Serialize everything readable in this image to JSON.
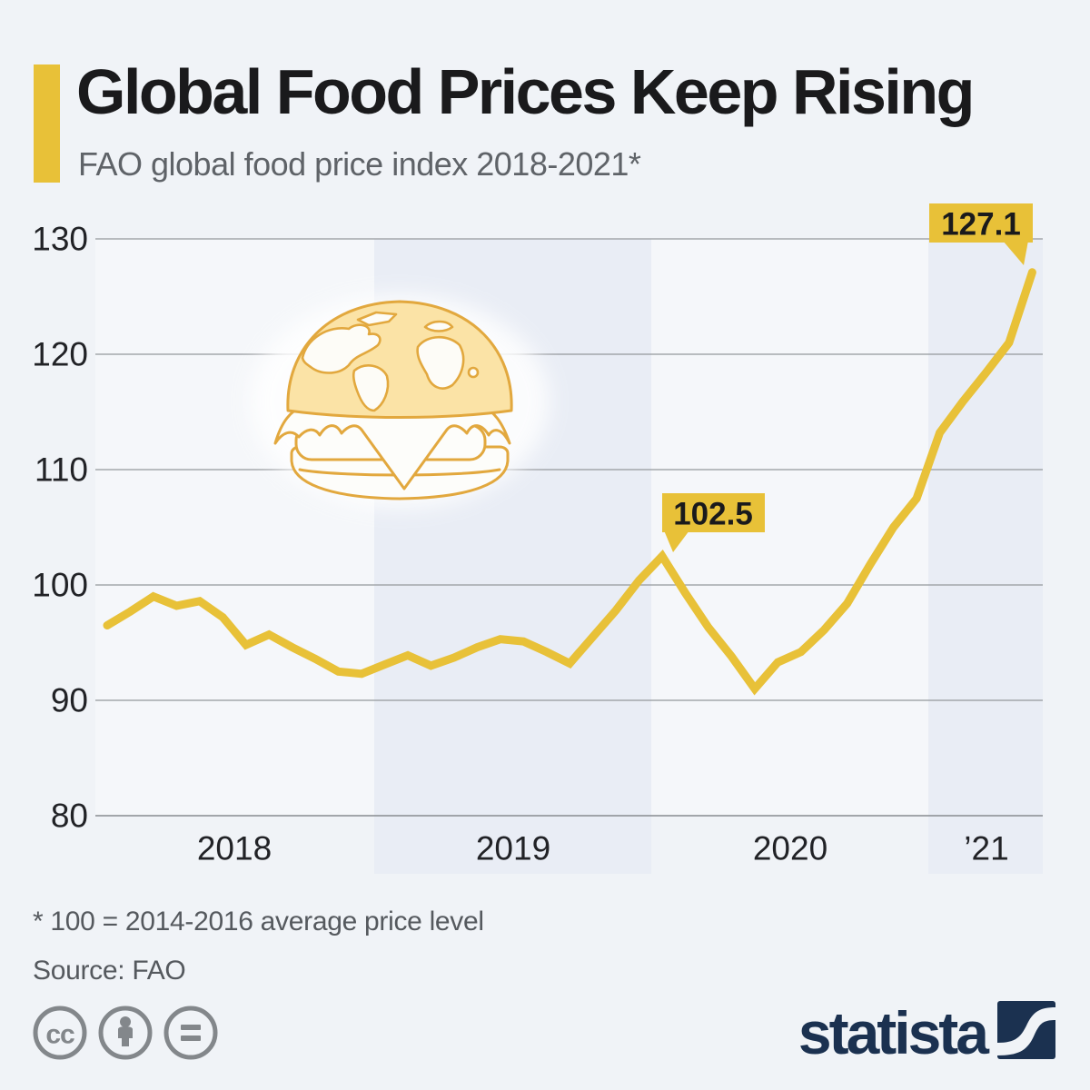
{
  "header": {
    "title": "Global Food Prices Keep Rising",
    "subtitle": "FAO global food price index 2018-2021*"
  },
  "chart_data": {
    "type": "line",
    "title": "FAO global food price index 2018-2021",
    "frequency": "monthly",
    "x_start": "2018-01",
    "x_end": "2021-05",
    "years": [
      "2018",
      "2019",
      "2020",
      "2021"
    ],
    "points_per_year": [
      12,
      12,
      12,
      5
    ],
    "series": [
      {
        "name": "FAO global food price index",
        "values": [
          96.5,
          97.7,
          99.0,
          98.2,
          98.6,
          97.2,
          94.8,
          95.7,
          94.6,
          93.6,
          92.5,
          92.3,
          93.1,
          93.9,
          93.0,
          93.7,
          94.6,
          95.3,
          95.1,
          94.2,
          93.2,
          95.5,
          97.8,
          100.4,
          102.5,
          99.3,
          96.3,
          93.8,
          91.0,
          93.3,
          94.2,
          96.1,
          98.4,
          101.8,
          105.0,
          107.5,
          113.2,
          115.9,
          118.4,
          121.0,
          127.1
        ]
      }
    ],
    "ylim": [
      80,
      130
    ],
    "yticks": [
      130,
      120,
      110,
      100,
      90,
      80
    ],
    "ytick_labels": [
      "130",
      "120",
      "110",
      "100",
      "90",
      "80"
    ],
    "xtick_labels": [
      "2018",
      "2019",
      "2020",
      "’21"
    ],
    "grid": true,
    "legend": "none",
    "highlight_bands": [
      "2019",
      "2021"
    ],
    "annotations": [
      {
        "label": "102.5",
        "value": 102.5,
        "x_index": 24,
        "month": "2020-01"
      },
      {
        "label": "127.1",
        "value": 127.1,
        "x_index": 40,
        "month": "2021-05"
      }
    ],
    "ylabel": "",
    "xlabel": ""
  },
  "footer": {
    "footnote": "* 100 = 2014-2016 average price level",
    "source": "Source: FAO"
  },
  "branding": {
    "logo_text": "statista",
    "cc_label": "cc",
    "license_icons": [
      "cc-icon",
      "attribution-person-icon",
      "equals-icon"
    ]
  },
  "colors": {
    "background": "#f0f3f7",
    "plot_background": "#f5f7fa",
    "band": "#e9edf5",
    "line": "#e8c138",
    "accent": "#e8c138",
    "annotation_box": "#e8c138",
    "title_text": "#1a1a1c",
    "muted_text": "#55595e",
    "gridline": "#95989c",
    "logo_navy": "#1b3150",
    "icon_gray": "#83878b",
    "burger_outline": "#e2a83e",
    "burger_fill": "#fbe3a6"
  }
}
